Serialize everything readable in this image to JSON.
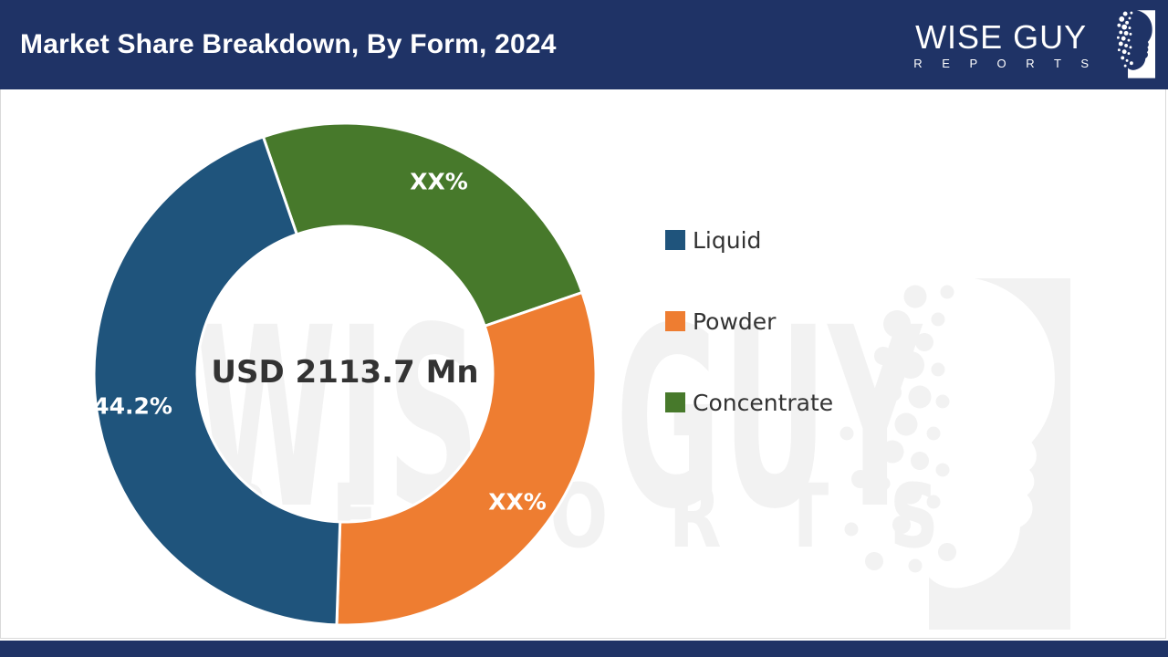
{
  "header": {
    "title": "Market Share Breakdown, By Form, 2024",
    "logo": {
      "name": "WISE GUY",
      "tagline": "R E P O R T S"
    }
  },
  "watermark": {
    "line1": "WISE GUY",
    "line2": "R E P O R T S"
  },
  "chart_data": {
    "type": "pie",
    "subtype": "donut",
    "title": "Market Share Breakdown, By Form, 2024",
    "center_label": "USD 2113.7 Mn",
    "total_value": "USD 2113.7 Mn",
    "start_angle_deg": -19,
    "direction": "clockwise",
    "legend_position": "right",
    "segments": [
      {
        "name": "Concentrate",
        "label": "XX%",
        "value_pct": 25.0,
        "value_shown": false,
        "color": "#47792B"
      },
      {
        "name": "Powder",
        "label": "XX%",
        "value_pct": 30.8,
        "value_shown": false,
        "color": "#EE7D31"
      },
      {
        "name": "Liquid",
        "label": "44.2%",
        "value_pct": 44.2,
        "value_shown": true,
        "color": "#1F547C"
      }
    ],
    "legend": [
      {
        "label": "Liquid",
        "color": "#1F547C"
      },
      {
        "label": "Powder",
        "color": "#EE7D31"
      },
      {
        "label": "Concentrate",
        "color": "#47792B"
      }
    ]
  },
  "colors": {
    "header_bg": "#1F3366",
    "footer_bg": "#1F3366",
    "text_dark": "#333333",
    "segment_label_text": "#FFFFFF",
    "watermark": "#F2F2F2",
    "border": "#D9D9D9"
  }
}
